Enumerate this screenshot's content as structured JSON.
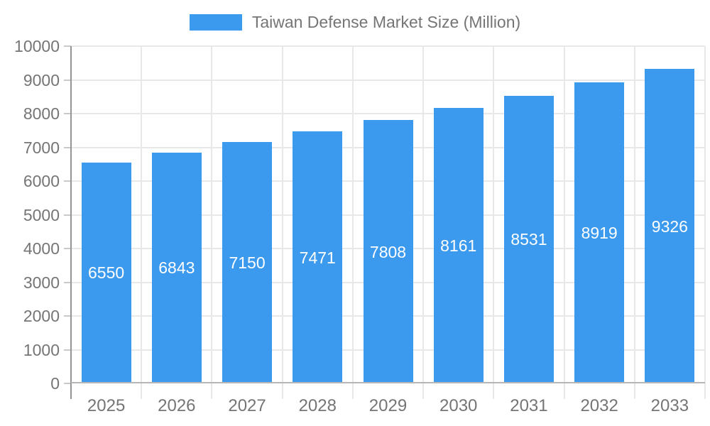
{
  "chart_data": {
    "type": "bar",
    "title": "Taiwan Defense Market Size (Million)",
    "legend": "Taiwan Defense Market Size (Million)",
    "legend_position": "top",
    "categories": [
      "2025",
      "2026",
      "2027",
      "2028",
      "2029",
      "2030",
      "2031",
      "2032",
      "2033"
    ],
    "values": [
      6550,
      6843,
      7150,
      7471,
      7808,
      8161,
      8531,
      8919,
      9326
    ],
    "xlabel": "",
    "ylabel": "",
    "ylim": [
      0,
      10000
    ],
    "ytick_step": 1000,
    "grid": true,
    "bar_color": "#3B99EE",
    "value_label_color": "#FFFFFF",
    "axis_text_color": "#757575"
  }
}
